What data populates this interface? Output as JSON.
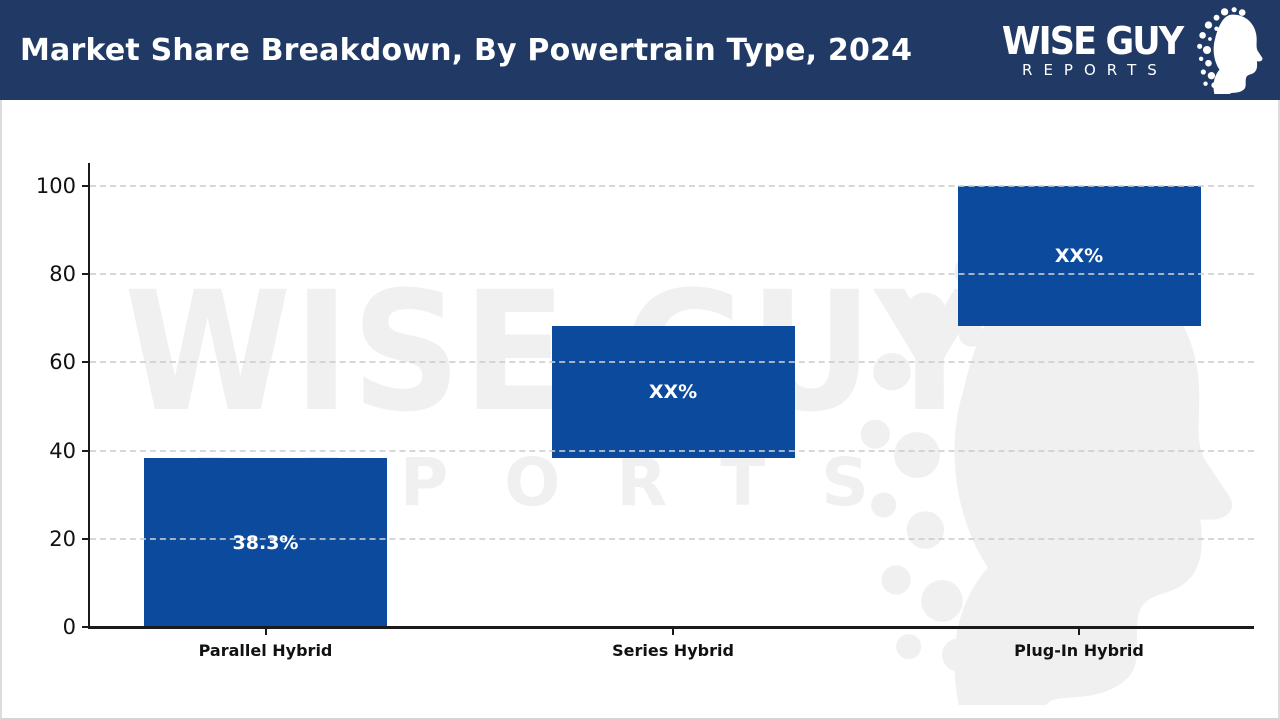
{
  "header": {
    "title": "Market Share Breakdown, By Powertrain Type, 2024",
    "logo": {
      "wordmark": "WISE GUY",
      "sub": "REPORTS",
      "icon": "face-profile-dots-icon"
    }
  },
  "watermark": {
    "line1": "WISE GUY",
    "line2": "REPORTS",
    "icon": "face-profile-dots-icon"
  },
  "colors": {
    "header_bg": "#213A65",
    "bar": "#0C4A9E",
    "bar_label": "#ffffff",
    "grid": "rgba(205,205,205,0.8)",
    "axis": "#1a1a1a",
    "watermark": "#f0f0f1",
    "logo_white": "#ffffff"
  },
  "chart_data": {
    "type": "bar",
    "subtype": "waterfall",
    "title": "Market Share Breakdown, By Powertrain Type, 2024",
    "categories": [
      "Parallel Hybrid",
      "Series Hybrid",
      "Plug-In Hybrid"
    ],
    "series": [
      {
        "name": "Market Share",
        "segments": [
          {
            "category": "Parallel Hybrid",
            "start": 0,
            "end": 38.3,
            "label": "38.3%"
          },
          {
            "category": "Series Hybrid",
            "start": 38.3,
            "end": 68.3,
            "label": "XX%"
          },
          {
            "category": "Plug-In Hybrid",
            "start": 68.3,
            "end": 100,
            "label": "XX%"
          }
        ]
      }
    ],
    "xlabel": "",
    "ylabel": "",
    "yticks": [
      0,
      20,
      40,
      60,
      80,
      100
    ],
    "ylim": [
      0,
      105
    ],
    "grid": "dashed-horizontal-over-bars",
    "legend": "none"
  }
}
